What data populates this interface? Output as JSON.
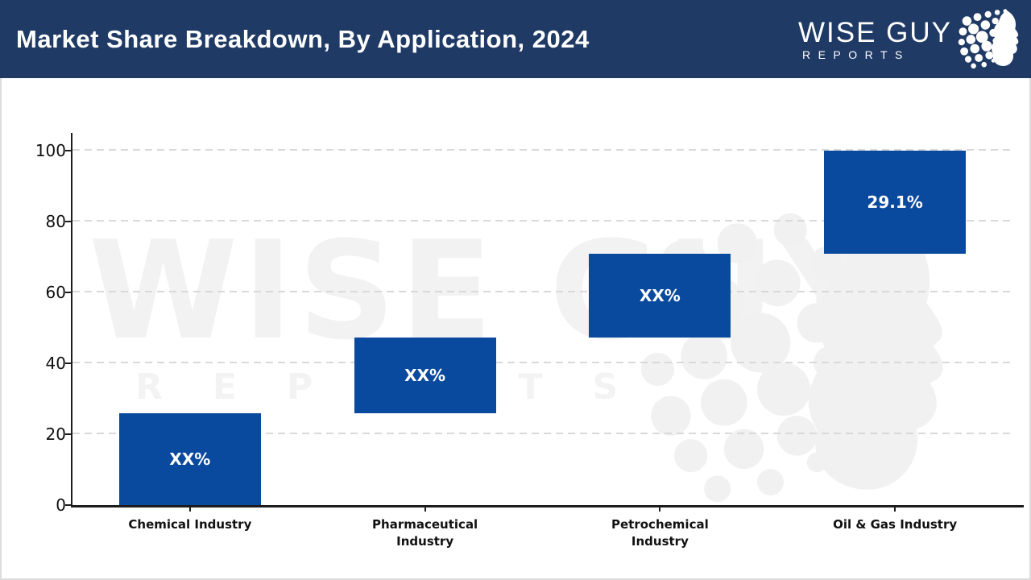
{
  "header": {
    "title": "Market Share Breakdown, By Application, 2024",
    "logo_line1": "WISE GUY",
    "logo_line2": "REPORTS",
    "bg_color": "#203a66"
  },
  "watermark": {
    "line1": "WISE GUY",
    "line2": "REPORTS"
  },
  "chart_data": {
    "type": "bar",
    "subtype": "floating-waterfall",
    "title": "Market Share Breakdown, By Application, 2024",
    "categories": [
      "Chemical Industry",
      "Pharmaceutical Industry",
      "Petrochemical Industry",
      "Oil & Gas Industry"
    ],
    "bars": [
      {
        "category": "Chemical Industry",
        "start": 0,
        "end": 25.8,
        "label": "XX%"
      },
      {
        "category": "Pharmaceutical Industry",
        "start": 25.8,
        "end": 47.3,
        "label": "XX%"
      },
      {
        "category": "Petrochemical Industry",
        "start": 47.3,
        "end": 70.9,
        "label": "XX%"
      },
      {
        "category": "Oil & Gas Industry",
        "start": 70.9,
        "end": 100,
        "label": "29.1%"
      }
    ],
    "yticks": [
      0,
      20,
      40,
      60,
      80,
      100
    ],
    "ylim": [
      0,
      105
    ],
    "xlabel": "",
    "ylabel": "",
    "grid": "horizontal-dashed",
    "legend": "none",
    "bar_color": "#0a4a9e",
    "bar_label_color": "#ffffff",
    "axis_color": "#1c1c1c",
    "grid_color": "#d9d9d9"
  }
}
